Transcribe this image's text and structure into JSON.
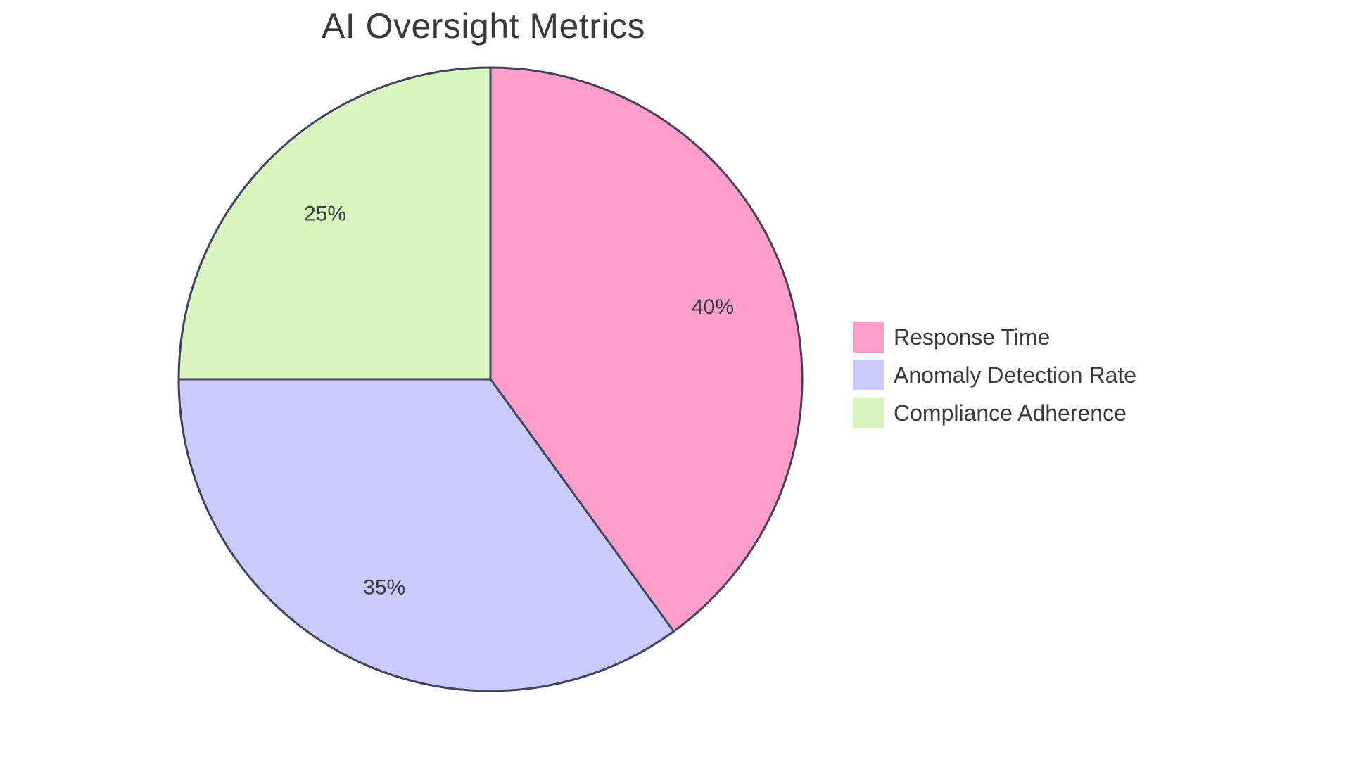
{
  "title": "AI Oversight Metrics",
  "chart_data": {
    "type": "pie",
    "title": "AI Oversight Metrics",
    "labels": [
      "Response Time",
      "Anomaly Detection Rate",
      "Compliance Adherence"
    ],
    "values": [
      40,
      35,
      25
    ],
    "value_labels": [
      "40%",
      "35%",
      "25%"
    ],
    "colors": [
      "#FC9ECA",
      "#C9CBFC",
      "#D8F5BE"
    ],
    "stroke_color": "#41435E",
    "stroke_width": 3,
    "label_color": "#3A3A3A",
    "start_angle_deg": -90,
    "direction": "clockwise",
    "legend_position": "right",
    "center": [
      697,
      539
    ],
    "radius": 443,
    "label_radius_frac": 0.75
  }
}
